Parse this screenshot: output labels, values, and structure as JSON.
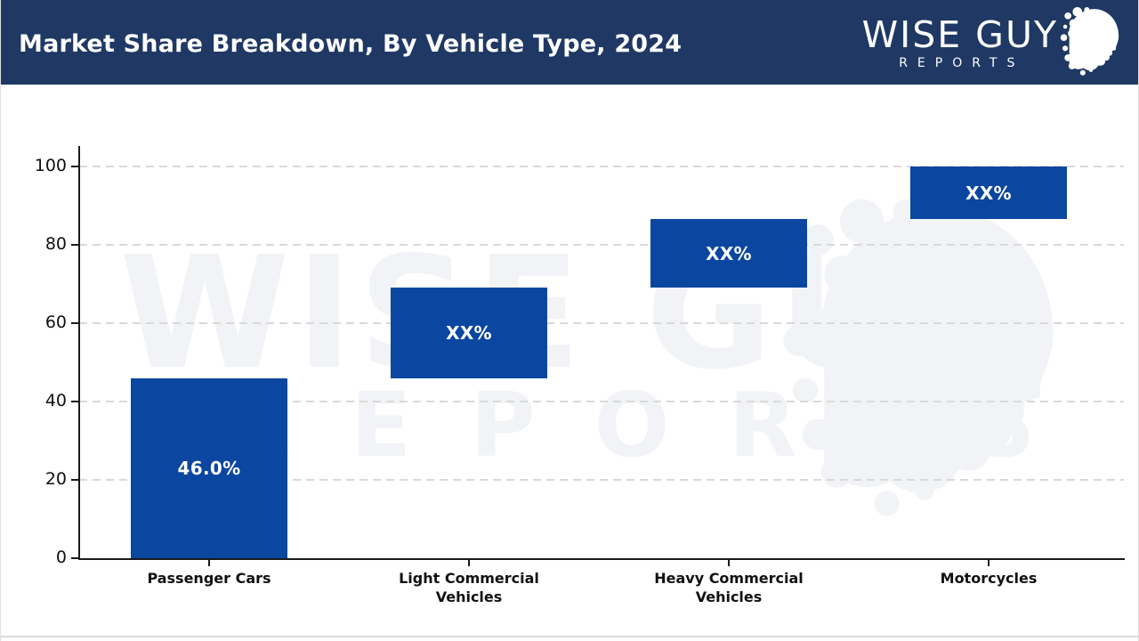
{
  "header": {
    "title": "Market Share Breakdown, By Vehicle Type, 2024",
    "logo": {
      "brand_line1": "WISE GUY",
      "brand_line2": "REPORTS"
    }
  },
  "watermark": {
    "line1": "WISE GUY",
    "line2": "REPORTS"
  },
  "colors": {
    "header_bg": "#1f3864",
    "bar": "#0b46a0",
    "grid": "#d9d9d9",
    "axis": "#1a1a1a",
    "bar_label": "#ffffff",
    "watermark": "#f2f3f6"
  },
  "chart_data": {
    "type": "bar",
    "subtype": "stacked-waterfall",
    "title": "Market Share Breakdown, By Vehicle Type, 2024",
    "xlabel": "",
    "ylabel": "",
    "ylim": [
      0,
      105
    ],
    "yticks": [
      0,
      20,
      40,
      60,
      80,
      100
    ],
    "grid": "horizontal-dashed",
    "legend": "none",
    "bar_color": "#0b46a0",
    "categories": [
      "Passenger Cars",
      "Light Commercial Vehicles",
      "Heavy Commercial Vehicles",
      "Motorcycles"
    ],
    "segments": [
      {
        "category": "Passenger Cars",
        "label_lines": [
          "Passenger Cars"
        ],
        "start": 0,
        "end": 46,
        "value_label": "46.0%"
      },
      {
        "category": "Light Commercial Vehicles",
        "label_lines": [
          "Light Commercial",
          "Vehicles"
        ],
        "start": 46,
        "end": 69,
        "value_label": "XX%"
      },
      {
        "category": "Heavy Commercial Vehicles",
        "label_lines": [
          "Heavy Commercial",
          "Vehicles"
        ],
        "start": 69,
        "end": 86.5,
        "value_label": "XX%"
      },
      {
        "category": "Motorcycles",
        "label_lines": [
          "Motorcycles"
        ],
        "start": 86.5,
        "end": 100,
        "value_label": "XX%"
      }
    ]
  }
}
